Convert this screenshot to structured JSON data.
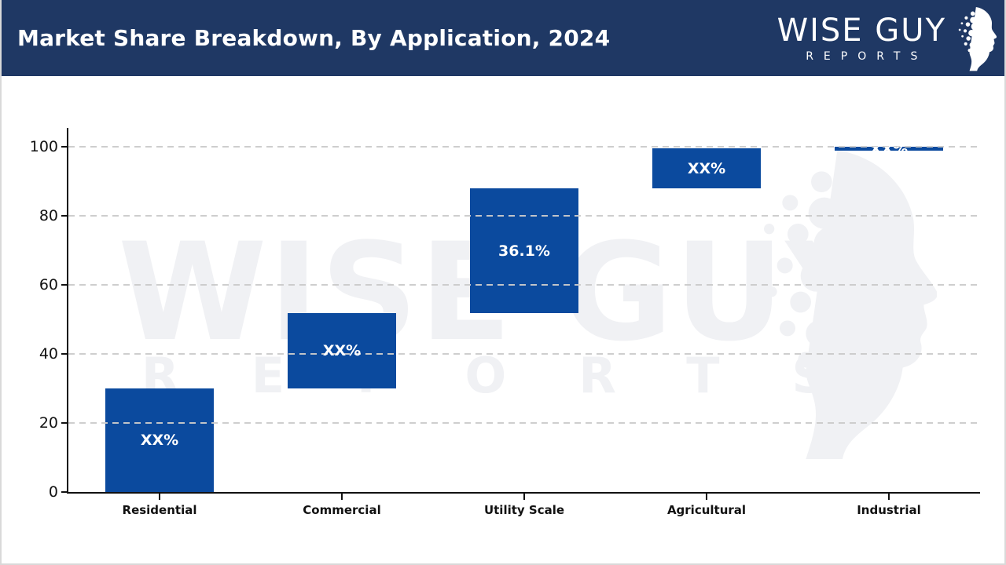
{
  "header": {
    "title": "Market Share Breakdown, By Application, 2024",
    "bg_color": "#1f3864",
    "logo": {
      "line1": "WISE GUY",
      "line2": "REPORTS"
    }
  },
  "watermark": {
    "line1": "WISE GUY",
    "line2": "REPORTS"
  },
  "chart_data": {
    "type": "bar",
    "subtype": "floating-segment waterfall of market share",
    "title": "Market Share Breakdown, By Application, 2024",
    "categories": [
      "Residential",
      "Commercial",
      "Utility Scale",
      "Agricultural",
      "Industrial"
    ],
    "segments": [
      {
        "category": "Residential",
        "start": 0,
        "end": 30.0,
        "value": 30.0,
        "label": "XX%"
      },
      {
        "category": "Commercial",
        "start": 30.0,
        "end": 51.8,
        "value": 21.8,
        "label": "XX%"
      },
      {
        "category": "Utility Scale",
        "start": 51.8,
        "end": 87.9,
        "value": 36.1,
        "label": "36.1%"
      },
      {
        "category": "Agricultural",
        "start": 87.9,
        "end": 99.5,
        "value": 11.6,
        "label": "XX%"
      },
      {
        "category": "Industrial",
        "start": 99.5,
        "end": 100.0,
        "value": 0.5,
        "label": "XX%"
      }
    ],
    "yticks": [
      0,
      20,
      40,
      60,
      80,
      100
    ],
    "ylim": [
      0,
      105
    ],
    "xlabel": "",
    "ylabel": "",
    "grid": "horizontal dashed, drawn over bars",
    "legend": "none",
    "bar_color": "#0b4a9e",
    "bar_label_color": "#ffffff"
  }
}
